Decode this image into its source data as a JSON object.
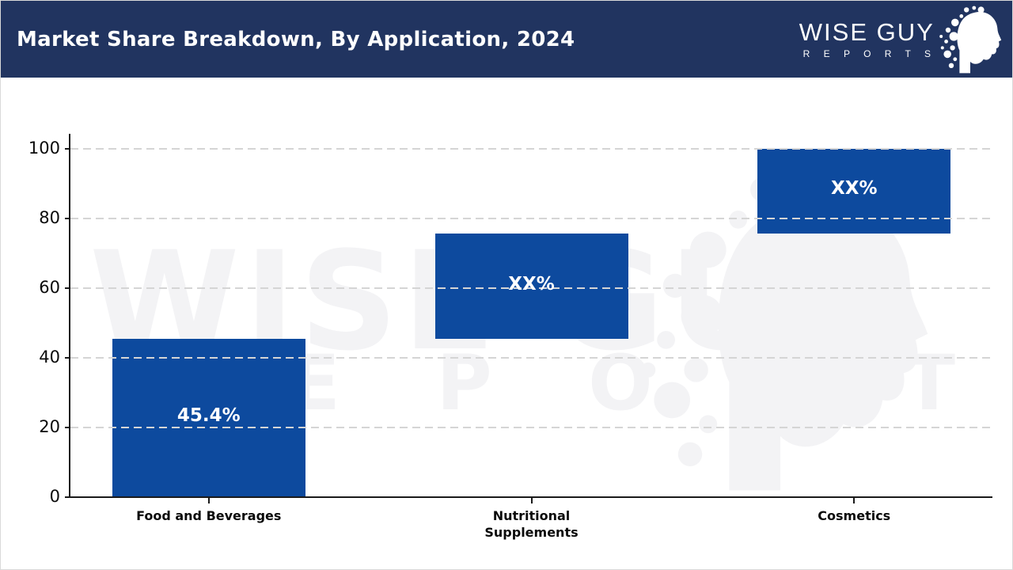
{
  "header": {
    "title": "Market Share Breakdown, By Application, 2024",
    "logo": {
      "line1": "WISE GUY",
      "line2": "R E P O R T S"
    }
  },
  "watermark": {
    "line1": "WISE GUY",
    "line2": "R E P O R T S"
  },
  "colors": {
    "header_bg": "#213460",
    "bar": "#0d4a9e",
    "bar_label": "#ffffff",
    "gridline": "#d5d5d5",
    "axis": "#1a1a1a",
    "watermark": "#f3f3f5"
  },
  "chart_data": {
    "type": "bar",
    "variant": "waterfall-floating-bars",
    "title": "Market Share Breakdown, By Application, 2024",
    "categories": [
      "Food and Beverages",
      "Nutritional\nSupplements",
      "Cosmetics"
    ],
    "series": [
      {
        "name": "Market Share %",
        "segments": [
          {
            "category": "Food and Beverages",
            "start": 0,
            "end": 45.4,
            "label": "45.4%"
          },
          {
            "category": "Nutritional Supplements",
            "start": 45.4,
            "end": 75.7,
            "label": "XX%"
          },
          {
            "category": "Cosmetics",
            "start": 75.7,
            "end": 100,
            "label": "XX%"
          }
        ]
      }
    ],
    "ylim": [
      0,
      100
    ],
    "yticks": [
      0,
      20,
      40,
      60,
      80,
      100
    ],
    "xlabel": "",
    "ylabel": "",
    "grid": "horizontal-dashed",
    "legend": "none"
  }
}
